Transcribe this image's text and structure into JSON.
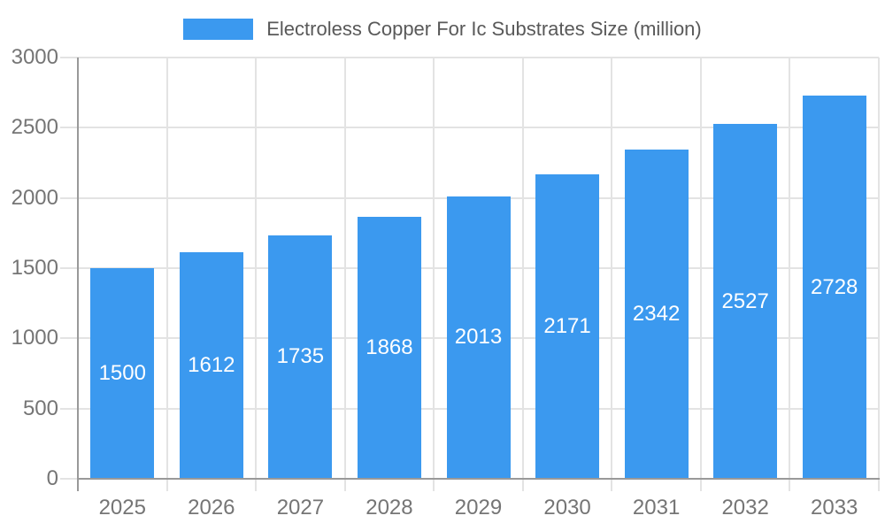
{
  "chart_data": {
    "type": "bar",
    "title": "Electroless Copper For Ic Substrates Size (million)",
    "series_name": "Electroless Copper For Ic Substrates Size (million)",
    "categories": [
      "2025",
      "2026",
      "2027",
      "2028",
      "2029",
      "2030",
      "2031",
      "2032",
      "2033"
    ],
    "values": [
      1500,
      1612,
      1735,
      1868,
      2013,
      2171,
      2342,
      2527,
      2728
    ],
    "xlabel": "",
    "ylabel": "",
    "ylim": [
      0,
      3000
    ],
    "yticks": [
      0,
      500,
      1000,
      1500,
      2000,
      2500,
      3000
    ],
    "grid": true,
    "legend_position": "top-center",
    "value_label_position": "inside-center",
    "colors": {
      "bar": "#3B99EF",
      "grid": "#E3E3E3",
      "axis": "#999999",
      "tick_label": "#757575",
      "legend_text": "#595959",
      "value_label": "#FFFFFF",
      "background": "#FFFFFF"
    }
  }
}
